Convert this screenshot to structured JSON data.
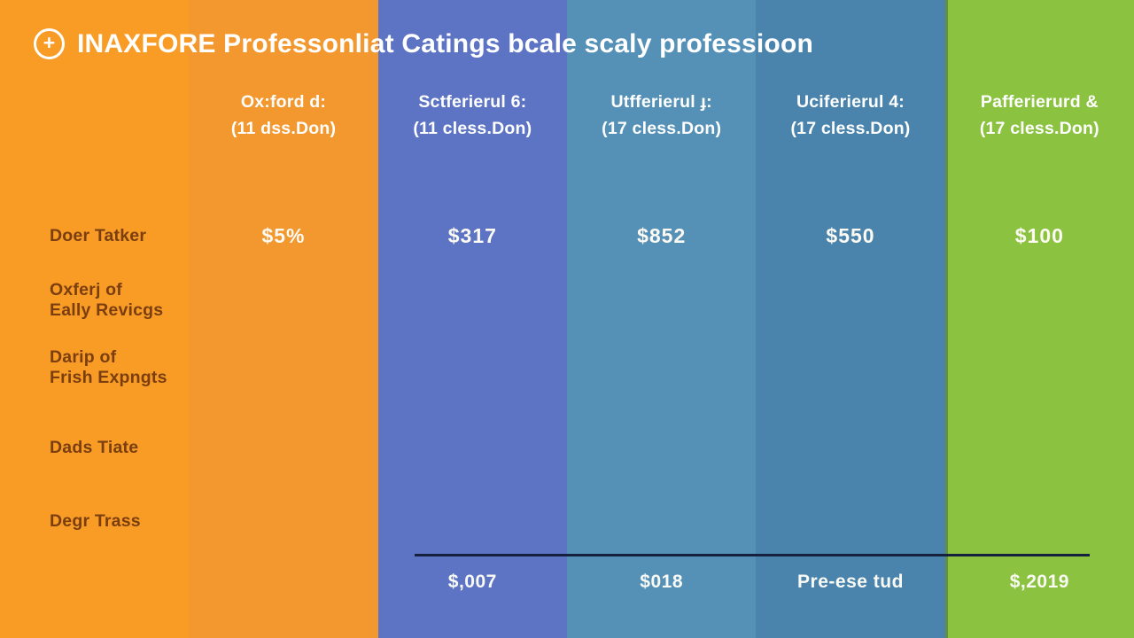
{
  "title": {
    "icon": "circle-plus",
    "text": "INAXFORE Professonliat Catings bcale scaly professioon"
  },
  "colors": {
    "labels_column_bg": "#F99C26",
    "divider": "#16213E",
    "row_label_text": "#7A3E10",
    "value_text": "#FFFFFF"
  },
  "rows": [
    {
      "label": "Doer Tatker"
    },
    {
      "label": "Oxferj of\nEally Revicgs"
    },
    {
      "label": "Darip of\nFrish Expngts"
    },
    {
      "label": "Dads Tiate"
    },
    {
      "label": "Degr Trass"
    }
  ],
  "plans": [
    {
      "name": "oxford",
      "header": "Ox:ford d:\n(11 dss.Don)",
      "price": "$5%",
      "footer": "",
      "color": "#F2982E"
    },
    {
      "name": "sctferierul",
      "header": "Sctferierul 6:\n(11 cless.Don)",
      "price": "$317",
      "footer": "$,007",
      "color": "#5C74C3"
    },
    {
      "name": "utfferierul",
      "header": "Utfferierul ɟ:\n(17 cless.Don)",
      "price": "$852",
      "footer": "$018",
      "color": "#5590B7"
    },
    {
      "name": "uciferierul",
      "header": "Uciferierul 4:\n(17 cless.Don)",
      "price": "$550",
      "footer": "Pre-ese tud",
      "color": "#4A84AD"
    },
    {
      "name": "pafferierurd",
      "header": "Pafferierurd &\n(17 cless.Don)",
      "price": "$100",
      "footer": "$,2019",
      "color": "#8BC340"
    }
  ],
  "chart_data": {
    "type": "table",
    "title": "INAXFORE Professonliat Catings bcale scaly professioon",
    "columns": [
      "",
      "Ox:ford d: (11 dss.Don)",
      "Sctferierul 6: (11 cless.Don)",
      "Utfferierul ɟ: (17 cless.Don)",
      "Uciferierul 4: (17 cless.Don)",
      "Pafferierurd & (17 cless.Don)"
    ],
    "rows": [
      [
        "Doer Tatker",
        "$5%",
        "$317",
        "$852",
        "$550",
        "$100"
      ],
      [
        "Oxferj of Eally Revicgs",
        "",
        "",
        "",
        "",
        ""
      ],
      [
        "Darip of Frish Expngts",
        "",
        "",
        "",
        "",
        ""
      ],
      [
        "Dads Tiate",
        "",
        "",
        "",
        "",
        ""
      ],
      [
        "Degr Trass",
        "",
        "",
        "",
        "",
        ""
      ],
      [
        "",
        "",
        "$,007",
        "$018",
        "Pre-ese tud",
        "$,2019"
      ]
    ]
  }
}
